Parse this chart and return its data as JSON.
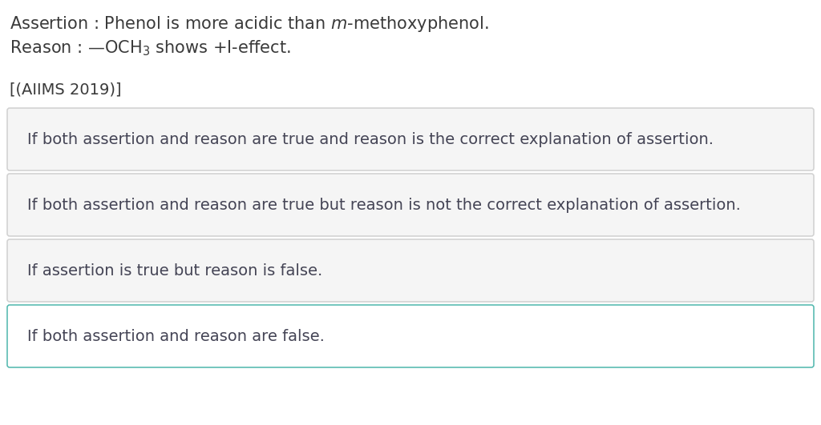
{
  "background_color": "#ffffff",
  "text_color": "#3a3a3a",
  "option_text_color": "#444455",
  "assertion_text": "Assertion : Phenol is more acidic than $\\it{m}$-methoxyphenol.",
  "reason_text": "Reason : —OCH$_3$ shows +I-effect.",
  "reference": "[(AIIMS 2019)]",
  "options": [
    "If both assertion and reason are true and reason is the correct explanation of assertion.",
    "If both assertion and reason are true but reason is not the correct explanation of assertion.",
    "If assertion is true but reason is false.",
    "If both assertion and reason are false."
  ],
  "option_border_colors": [
    "#d0d0d0",
    "#d0d0d0",
    "#d0d0d0",
    "#4db6ac"
  ],
  "option_bg_colors": [
    "#f5f5f5",
    "#f5f5f5",
    "#f5f5f5",
    "#ffffff"
  ],
  "header_font_size": 15,
  "option_font_size": 14,
  "ref_font_size": 14,
  "fig_width": 10.24,
  "fig_height": 5.31,
  "dpi": 100
}
